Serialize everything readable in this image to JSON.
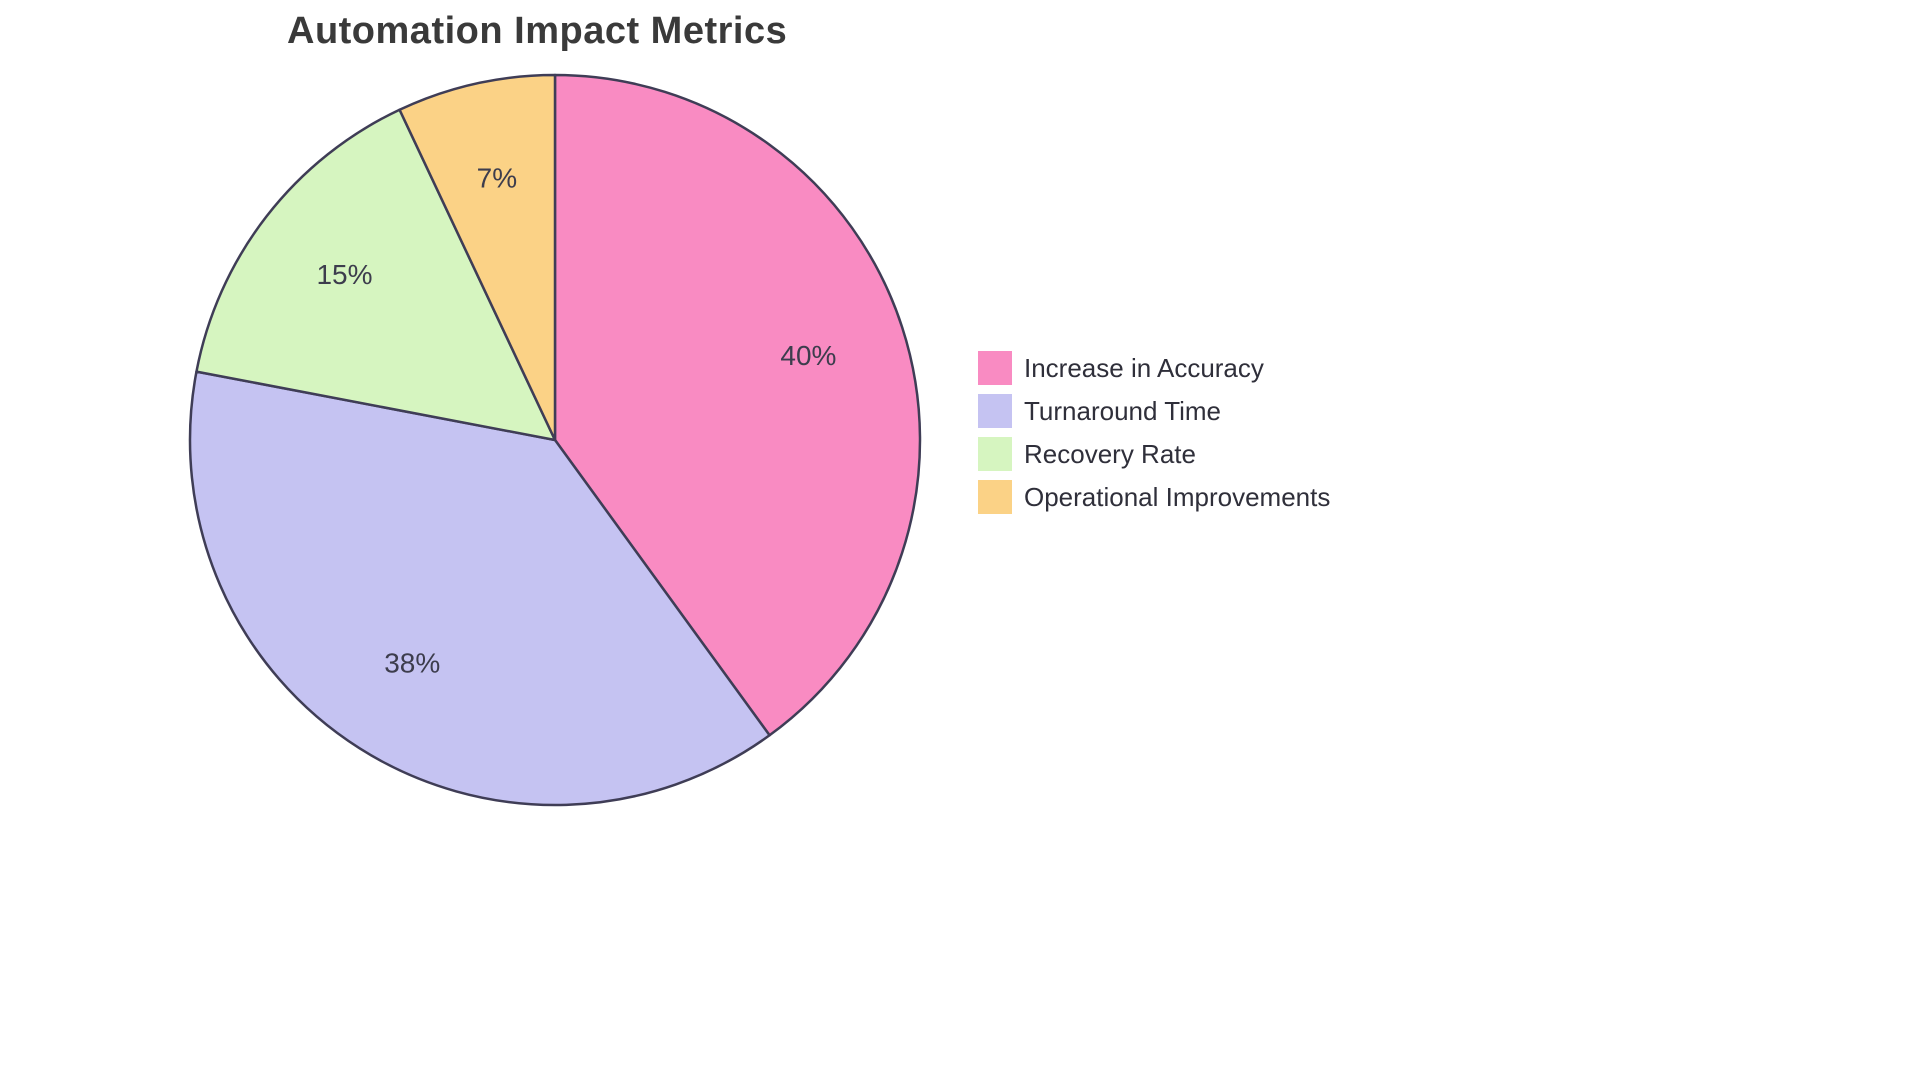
{
  "chart_data": {
    "type": "pie",
    "title": "Automation Impact Metrics",
    "labels": [
      "Increase in Accuracy",
      "Turnaround Time",
      "Recovery Rate",
      "Operational Improvements"
    ],
    "values": [
      40,
      38,
      15,
      7
    ],
    "value_labels": [
      "40%",
      "38%",
      "15%",
      "7%"
    ],
    "colors": [
      "#F98BC2",
      "#C5C3F2",
      "#D6F5C0",
      "#FBD286"
    ],
    "stroke_color": "#3F3D56",
    "legend_position": "right",
    "start_angle_deg": 0,
    "direction": "clockwise"
  }
}
